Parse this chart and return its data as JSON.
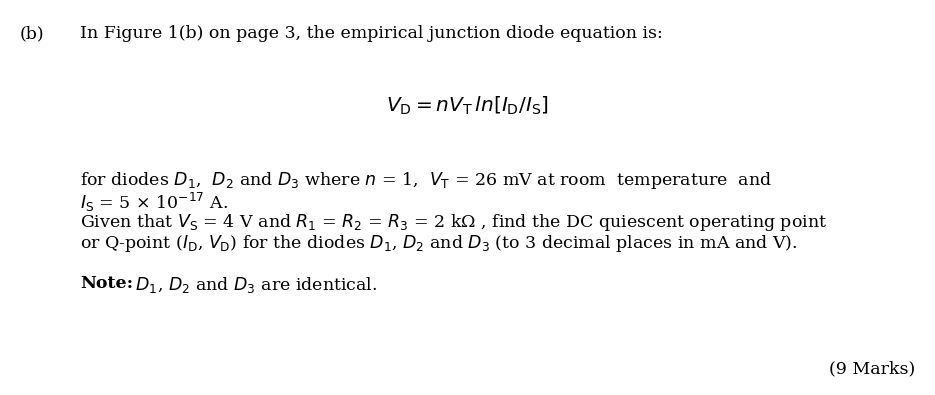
{
  "bg_color": "#ffffff",
  "label_b": "(b)",
  "line1": "In Figure 1(b) on page 3, the empirical junction diode equation is:",
  "equation": "$V_\\mathrm{D} = nV_\\mathrm{T}\\, \\mathit{ln}[I_\\mathrm{D}/I_\\mathrm{S}]$",
  "line2a": "for diodes $D_1$,  $D_2$ and $D_3$ where $n$ = 1,  $V_\\mathrm{T}$ = 26 mV at room  temperature  and",
  "line2b": "$I_\\mathrm{S}$ = 5 × 10$^{-17}$ A.",
  "line3a": "Given that $V_\\mathrm{S}$ = 4 V and $R_1$ = $R_2$ = $R_3$ = 2 kΩ , find the DC quiescent operating point",
  "line3b": "or Q-point ($I_\\mathrm{D}$, $V_\\mathrm{D}$) for the diodes $D_1$, $D_2$ and $D_3$ (to 3 decimal places in mA and V).",
  "note_bold": "Note:",
  "note_rest": " $D_1$, $D_2$ and $D_3$ are identical.",
  "marks": "(9 Marks)",
  "font_size_main": 12.5,
  "font_size_eq": 14.5,
  "font_size_marks": 12.5
}
